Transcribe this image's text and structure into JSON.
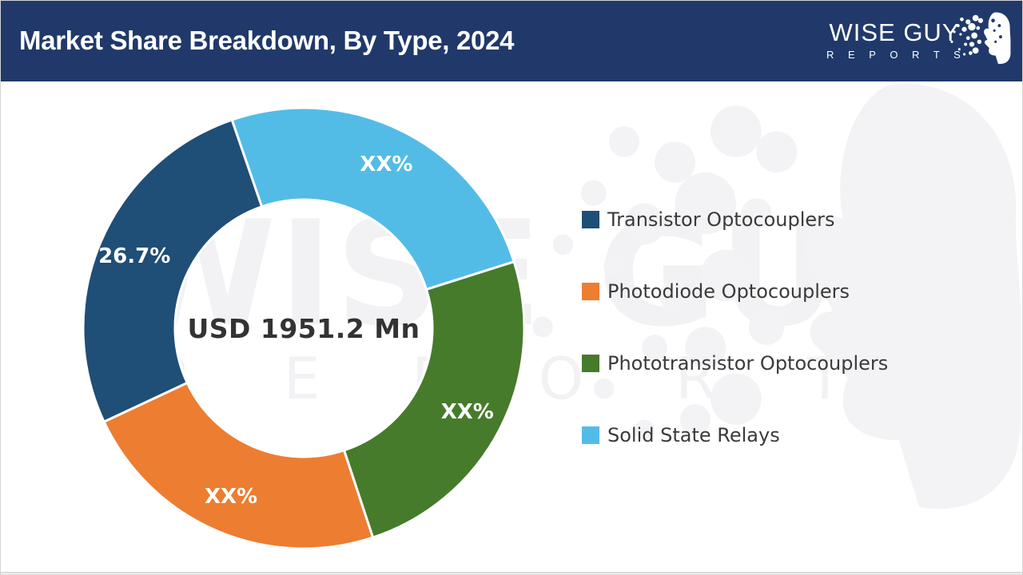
{
  "header": {
    "title": "Market Share Breakdown, By Type, 2024",
    "bg_color": "#20396a",
    "logo_line1": "WISE GUY",
    "logo_line2": "R E P O R T S"
  },
  "watermark": {
    "line1": "WISE GUY",
    "line2": "R E P O R T S"
  },
  "chart_data": {
    "type": "donut",
    "title": "Market Share Breakdown, By Type, 2024",
    "center_label": "USD 1951.2 Mn",
    "start_angle_deg": 341,
    "legend_position": "right",
    "slices": [
      {
        "name": "Solid State Relays",
        "pct": 25.4,
        "label": "XX%",
        "color": "#53bce6"
      },
      {
        "name": "Phototransistor Optocouplers",
        "pct": 24.8,
        "label": "XX%",
        "color": "#467b2b"
      },
      {
        "name": "Photodiode Optocouplers",
        "pct": 23.1,
        "label": "XX%",
        "color": "#ed7d31"
      },
      {
        "name": "Transistor Optocouplers",
        "pct": 26.7,
        "label": "26.7%",
        "color": "#1f4e77"
      }
    ],
    "legend": [
      {
        "label": "Transistor Optocouplers",
        "color": "#1f4e77"
      },
      {
        "label": "Photodiode Optocouplers",
        "color": "#ed7d31"
      },
      {
        "label": "Phototransistor Optocouplers",
        "color": "#467b2b"
      },
      {
        "label": "Solid State Relays",
        "color": "#53bce6"
      }
    ]
  }
}
